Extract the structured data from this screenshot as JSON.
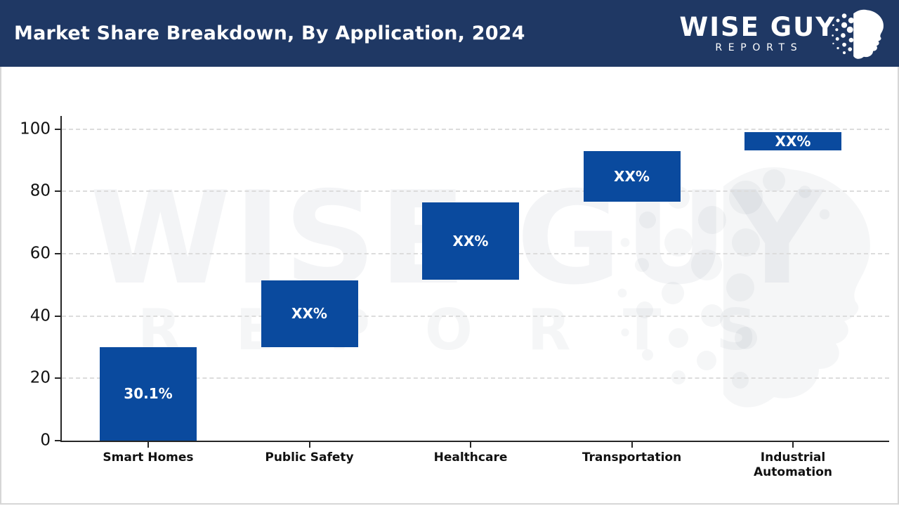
{
  "header": {
    "title": "Market Share Breakdown, By Application, 2024",
    "background": "#1f3864",
    "brand": {
      "line1": "WISE GUY",
      "line2": "REPORTS"
    }
  },
  "watermark": {
    "line1": "WISE GUY",
    "line2": "REPORTS"
  },
  "chart_data": {
    "type": "bar",
    "subtype": "floating-waterfall",
    "title": "Market Share Breakdown, By Application, 2024",
    "categories": [
      "Smart Homes",
      "Public Safety",
      "Healthcare",
      "Transportation",
      "Industrial Automation"
    ],
    "series": [
      {
        "name": "Market Share",
        "segments": [
          [
            0,
            30.1
          ],
          [
            30.0,
            51.4
          ],
          [
            51.6,
            76.4
          ],
          [
            76.6,
            92.9
          ],
          [
            93.1,
            99.0
          ]
        ]
      }
    ],
    "bar_labels": [
      "30.1%",
      "XX%",
      "XX%",
      "XX%",
      "XX%"
    ],
    "xlabel": "",
    "ylabel": "",
    "yticks": [
      0,
      20,
      40,
      60,
      80,
      100
    ],
    "ylim": [
      0,
      104
    ],
    "grid": "horizontal-dashed",
    "legend": "none",
    "bar_color": "#0a4a9e",
    "bar_label_color": "#ffffff",
    "axis_color": "#262626",
    "gridline_color": "#dcdcdc"
  }
}
